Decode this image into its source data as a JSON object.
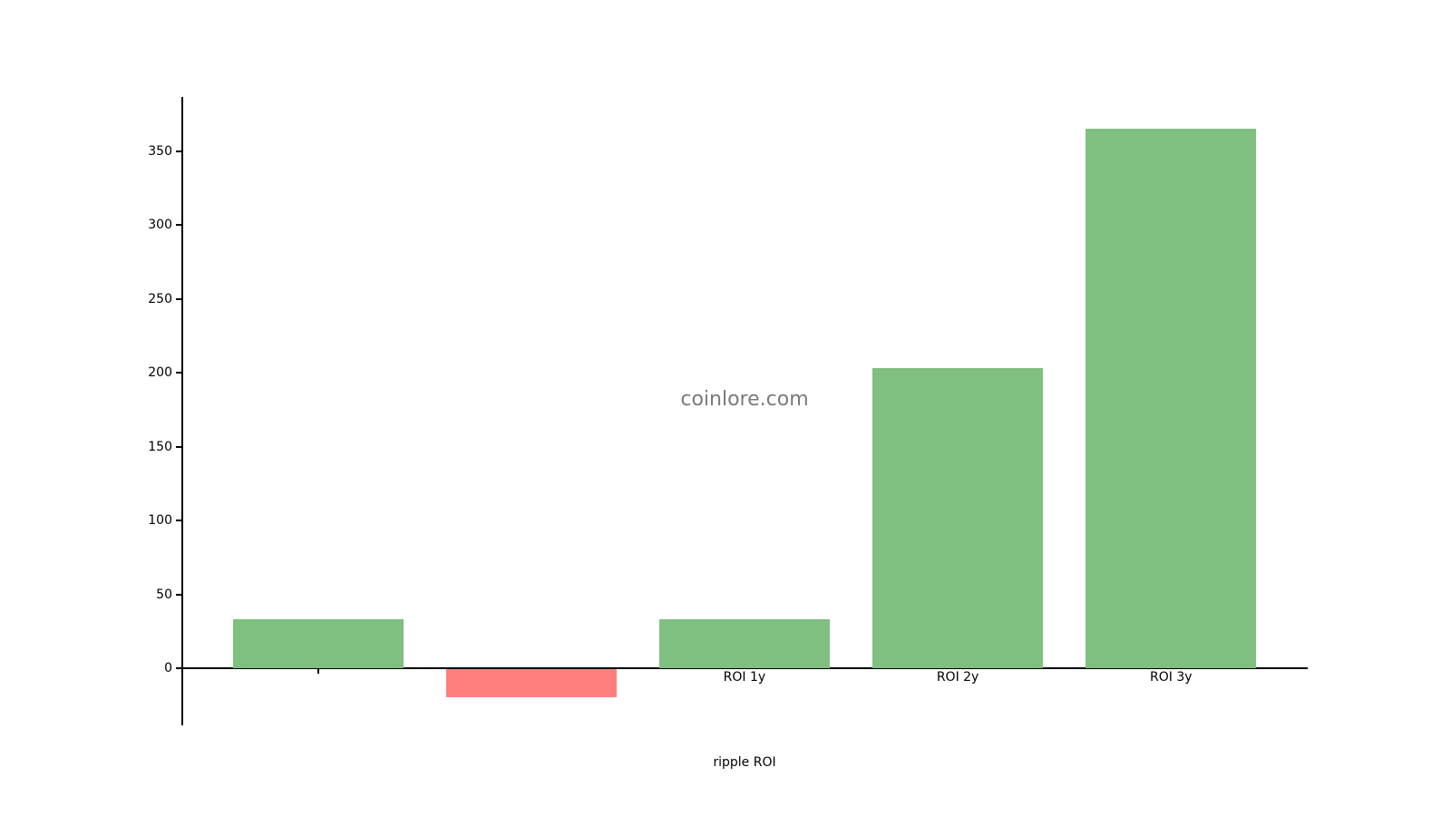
{
  "watermark": "coinlore.com",
  "chart_data": {
    "type": "bar",
    "title": "",
    "xlabel": "ripple ROI",
    "ylabel": "",
    "categories": [
      "",
      "",
      "ROI 1y",
      "ROI 2y",
      "ROI 3y"
    ],
    "values": [
      33,
      -19,
      33,
      203,
      365
    ],
    "series": [
      {
        "name": "ripple ROI %",
        "values": [
          33,
          -19,
          33,
          203,
          365
        ]
      }
    ],
    "positive_color": "#7fbf7f",
    "negative_color": "#ff7f7f",
    "yticks": [
      0,
      50,
      100,
      150,
      200,
      250,
      300,
      350
    ],
    "ylim": [
      -38,
      386
    ],
    "grid": false,
    "legend": "none",
    "watermark": "coinlore.com"
  }
}
